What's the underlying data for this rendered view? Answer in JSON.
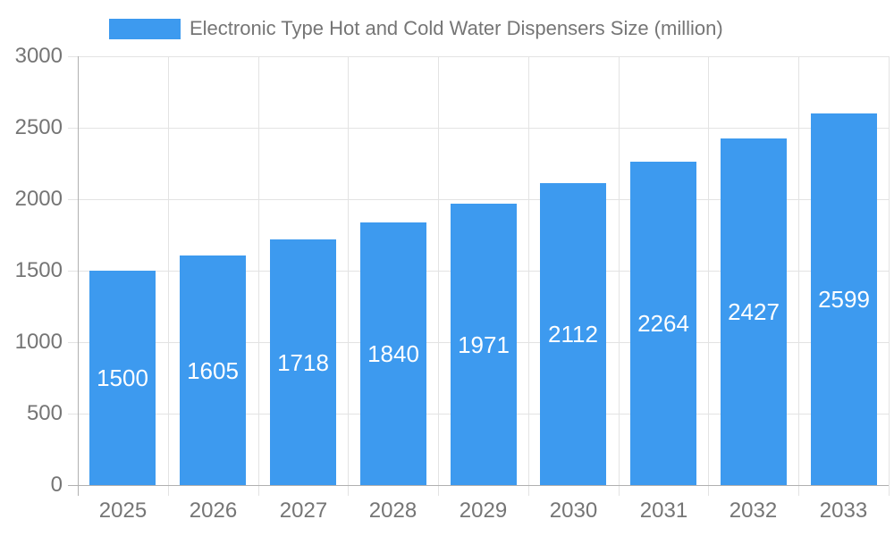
{
  "legend": {
    "label": "Electronic Type Hot and Cold Water Dispensers Size (million)"
  },
  "colors": {
    "bar": "#3D9AEF",
    "grid": "#E3E3E3",
    "axis": "#B0B0B0",
    "tick_text": "#757575",
    "value_label": "#FFFFFF",
    "background": "#FFFFFF"
  },
  "chart_data": {
    "type": "bar",
    "title": "Electronic Type Hot and Cold Water Dispensers Size (million)",
    "series_name": "Electronic Type Hot and Cold Water Dispensers Size (million)",
    "categories": [
      "2025",
      "2026",
      "2027",
      "2028",
      "2029",
      "2030",
      "2031",
      "2032",
      "2033"
    ],
    "values": [
      1500,
      1605,
      1718,
      1840,
      1971,
      2112,
      2264,
      2427,
      2599
    ],
    "xlabel": "",
    "ylabel": "",
    "ylim": [
      0,
      3000
    ],
    "yticks": [
      0,
      500,
      1000,
      1500,
      2000,
      2500,
      3000
    ],
    "grid": true,
    "legend_position": "top",
    "value_label_position": "inside-center"
  }
}
